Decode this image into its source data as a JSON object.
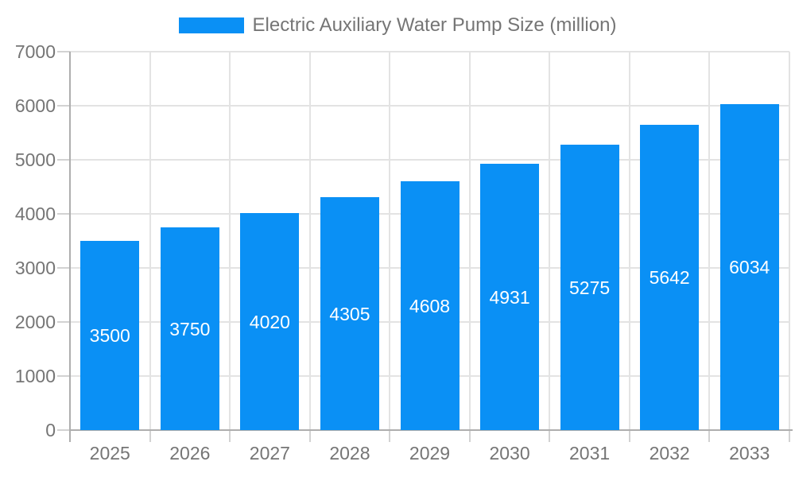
{
  "colors": {
    "bar": "#0A90F5",
    "bar_label": "#ffffff",
    "grid": "#e3e3e3",
    "axis": "#aeaeae",
    "tick": "#d2d2d2",
    "text": "#757575",
    "background": "#ffffff"
  },
  "legend": {
    "items": [
      {
        "label": "Electric Auxiliary Water Pump Size (million)",
        "color": "#0A90F5"
      }
    ]
  },
  "chart_data": {
    "type": "bar",
    "title": "Electric Auxiliary Water Pump Size (million)",
    "categories": [
      "2025",
      "2026",
      "2027",
      "2028",
      "2029",
      "2030",
      "2031",
      "2032",
      "2033"
    ],
    "values": [
      3500,
      3750,
      4020,
      4305,
      4608,
      4931,
      5275,
      5642,
      6034
    ],
    "series": [
      {
        "name": "Electric Auxiliary Water Pump Size (million)",
        "values": [
          3500,
          3750,
          4020,
          4305,
          4608,
          4931,
          5275,
          5642,
          6034
        ]
      }
    ],
    "xlabel": "",
    "ylabel": "",
    "ylim": [
      0,
      7000
    ],
    "yticks": [
      0,
      1000,
      2000,
      3000,
      4000,
      5000,
      6000,
      7000
    ],
    "grid": true,
    "legend_position": "top-center",
    "value_label_position": "inside-center"
  }
}
